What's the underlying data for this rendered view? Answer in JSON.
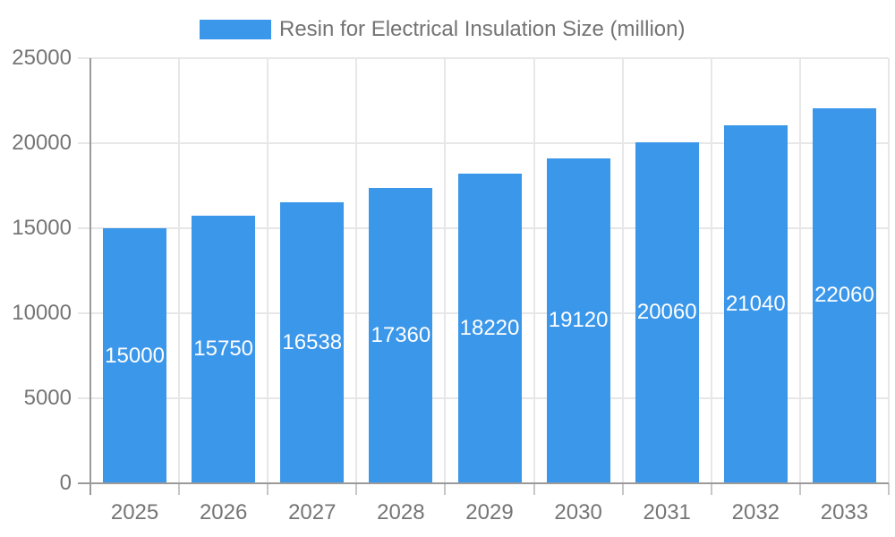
{
  "chart_data": {
    "type": "bar",
    "title": "Resin for Electrical Insulation Size (million)",
    "legend": {
      "position": "top",
      "entries": [
        "Resin for Electrical Insulation Size (million)"
      ]
    },
    "categories": [
      "2025",
      "2026",
      "2027",
      "2028",
      "2029",
      "2030",
      "2031",
      "2032",
      "2033"
    ],
    "series": [
      {
        "name": "Resin for Electrical Insulation Size (million)",
        "values": [
          15000,
          15750,
          16538,
          17360,
          18220,
          19120,
          20060,
          21040,
          22060
        ]
      }
    ],
    "data_labels": [
      "15000",
      "15750",
      "16538",
      "17360",
      "18220",
      "19120",
      "20060",
      "21040",
      "22060"
    ],
    "xlabel": "",
    "ylabel": "",
    "ylim": [
      0,
      25000
    ],
    "y_ticks": [
      0,
      5000,
      10000,
      15000,
      20000,
      25000
    ],
    "y_tick_labels": [
      "0",
      "5000",
      "10000",
      "15000",
      "20000",
      "25000"
    ],
    "grid": true,
    "colors": {
      "bar": "#3B97EA",
      "grid_line": "#e7e7e7",
      "axis_line": "#9a9a9a",
      "axis_text": "#757575",
      "legend_text": "#737373",
      "bar_label_text": "#ffffff",
      "background": "#ffffff"
    }
  }
}
